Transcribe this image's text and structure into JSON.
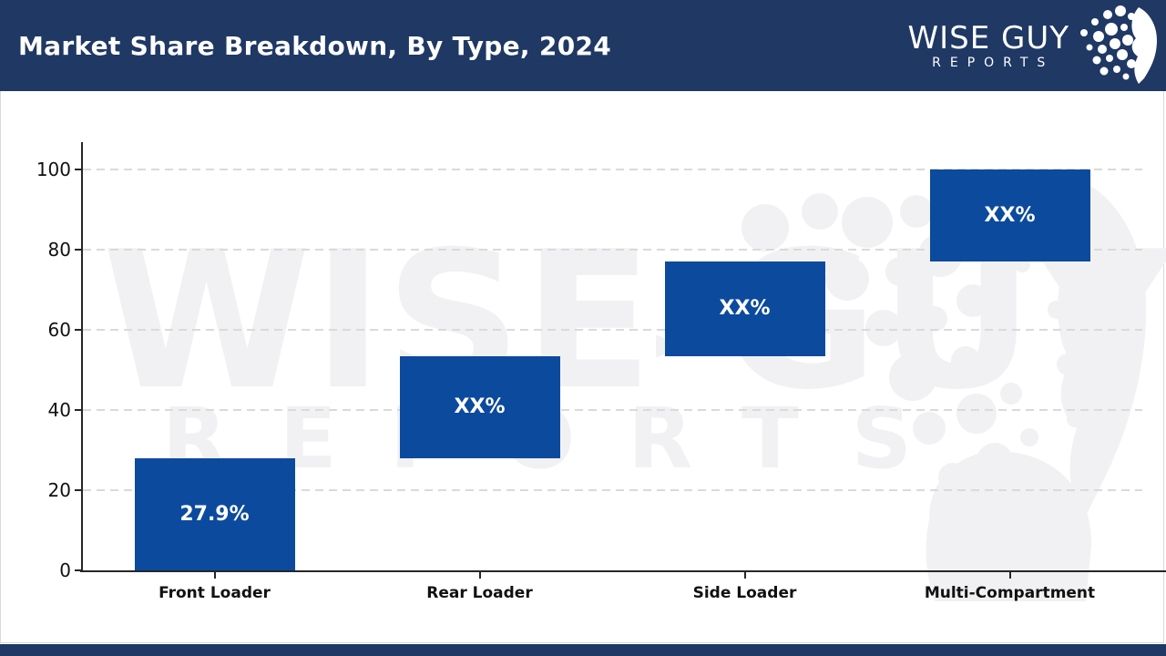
{
  "header": {
    "title": "Market Share Breakdown, By Type, 2024",
    "logo_line1": "WISE GUY",
    "logo_line2": "REPORTS"
  },
  "watermark": {
    "line1": "WISE GUY",
    "line2": "REPORTS"
  },
  "chart_data": {
    "type": "bar",
    "variant": "waterfall",
    "title": "Market Share Breakdown, By Type, 2024",
    "categories": [
      "Front Loader",
      "Rear Loader",
      "Side Loader",
      "Multi-Compartment"
    ],
    "segments": [
      {
        "category": "Front Loader",
        "start": 0,
        "end": 27.9,
        "label": "27.9%"
      },
      {
        "category": "Rear Loader",
        "start": 27.9,
        "end": 53.5,
        "label": "XX%"
      },
      {
        "category": "Side Loader",
        "start": 53.5,
        "end": 77.0,
        "label": "XX%"
      },
      {
        "category": "Multi-Compartment",
        "start": 77.0,
        "end": 100,
        "label": "XX%"
      }
    ],
    "y_ticks": [
      0,
      20,
      40,
      60,
      80,
      100
    ],
    "ylim": [
      0,
      106
    ],
    "grid": "horizontal-dashed",
    "legend": false
  },
  "colors": {
    "header_bg": "#1f3864",
    "footer_bg": "#1f3864",
    "bar": "#0c4a9e",
    "axis": "#262626",
    "grid": "#dadada",
    "bar_label": "#ffffff",
    "watermark": "#f1f1f3"
  }
}
